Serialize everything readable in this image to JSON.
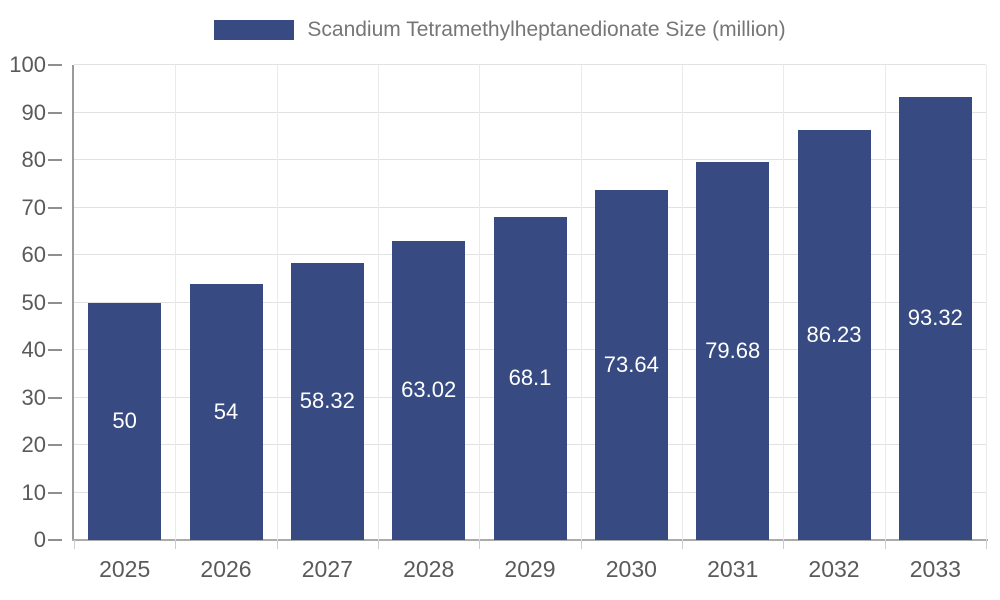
{
  "legend": {
    "label": "Scandium Tetramethylheptanedionate Size (million)",
    "swatch_color": "#374a81"
  },
  "chart_data": {
    "type": "bar",
    "title": "Scandium Tetramethylheptanedionate Size (million)",
    "categories": [
      "2025",
      "2026",
      "2027",
      "2028",
      "2029",
      "2030",
      "2031",
      "2032",
      "2033"
    ],
    "values": [
      50,
      54,
      58.32,
      63.02,
      68.1,
      73.64,
      79.68,
      86.23,
      93.32
    ],
    "value_labels": [
      "50",
      "54",
      "58.32",
      "63.02",
      "68.1",
      "73.64",
      "79.68",
      "86.23",
      "93.32"
    ],
    "xlabel": "",
    "ylabel": "",
    "ylim": [
      0,
      100
    ],
    "yticks": [
      0,
      10,
      20,
      30,
      40,
      50,
      60,
      70,
      80,
      90,
      100
    ],
    "grid": true,
    "legend_position": "top",
    "bar_color": "#374a81",
    "value_label_color": "#ffffff"
  },
  "colors": {
    "bar": "#374a81",
    "horizontal_grid": "#e2e2e2",
    "vertical_grid": "#eaeaea",
    "y_axis_line": "#9a9a9a",
    "x_axis_line": "#ababab",
    "tick_label": "#5a5a5a",
    "legend_text": "#767676",
    "background": "#ffffff"
  }
}
